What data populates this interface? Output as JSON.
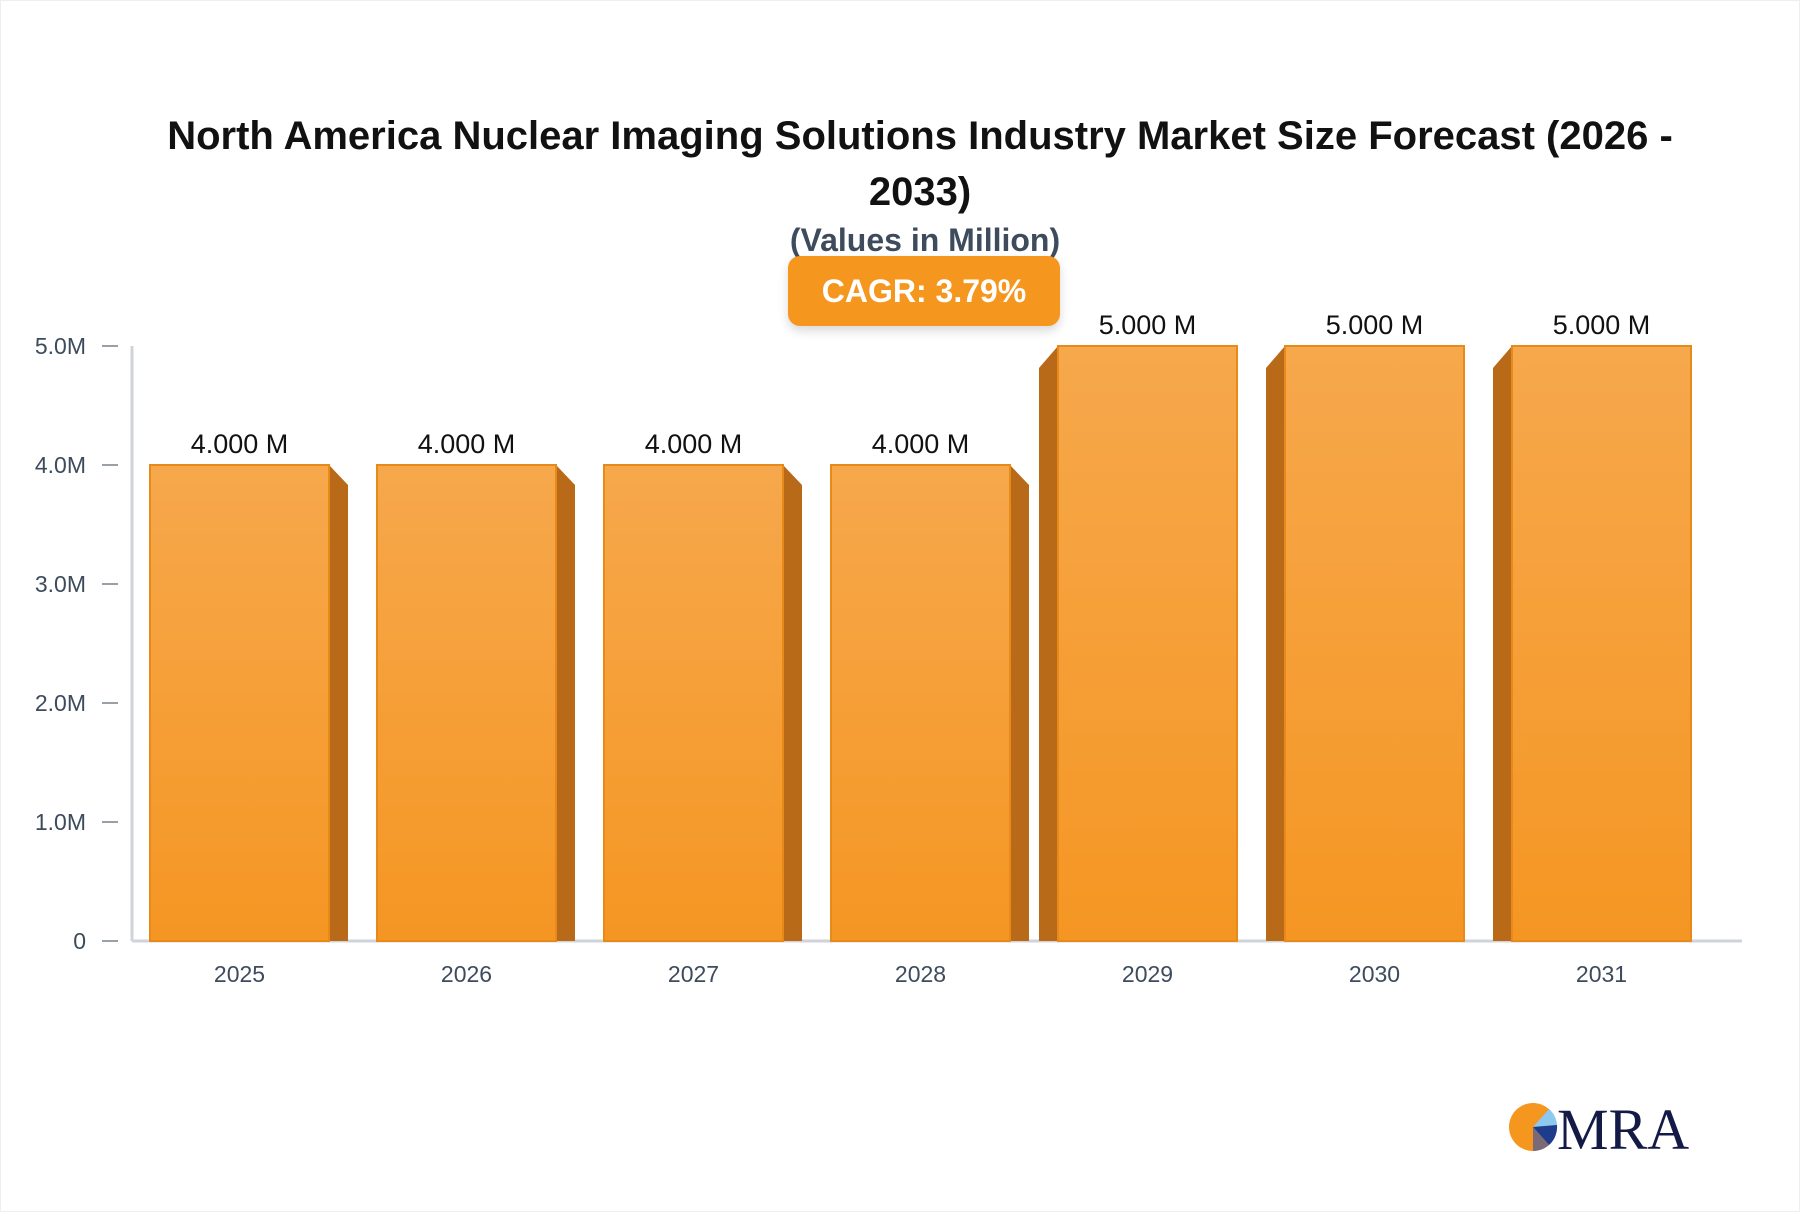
{
  "chart_data": {
    "type": "bar",
    "title": "North America Nuclear Imaging Solutions Industry Market Size Forecast (2026 - 2033)",
    "subtitle": "(Values in Million)",
    "annotation": "CAGR: 3.79%",
    "categories": [
      "2025",
      "2026",
      "2027",
      "2028",
      "2029",
      "2030",
      "2031"
    ],
    "values": [
      4.0,
      4.0,
      4.0,
      4.0,
      5.0,
      5.0,
      5.0
    ],
    "data_labels": [
      "4.000 M",
      "4.000 M",
      "4.000 M",
      "4.000 M",
      "5.000 M",
      "5.000 M",
      "5.000 M"
    ],
    "y_ticks": [
      "0",
      "1.0M",
      "2.0M",
      "3.0M",
      "4.0M",
      "5.0M"
    ],
    "ylim": [
      0,
      5
    ],
    "grid": false,
    "bar_color": "#f5a040",
    "bar_side_color": "#b86a18"
  },
  "logo": {
    "text": "MRA"
  }
}
